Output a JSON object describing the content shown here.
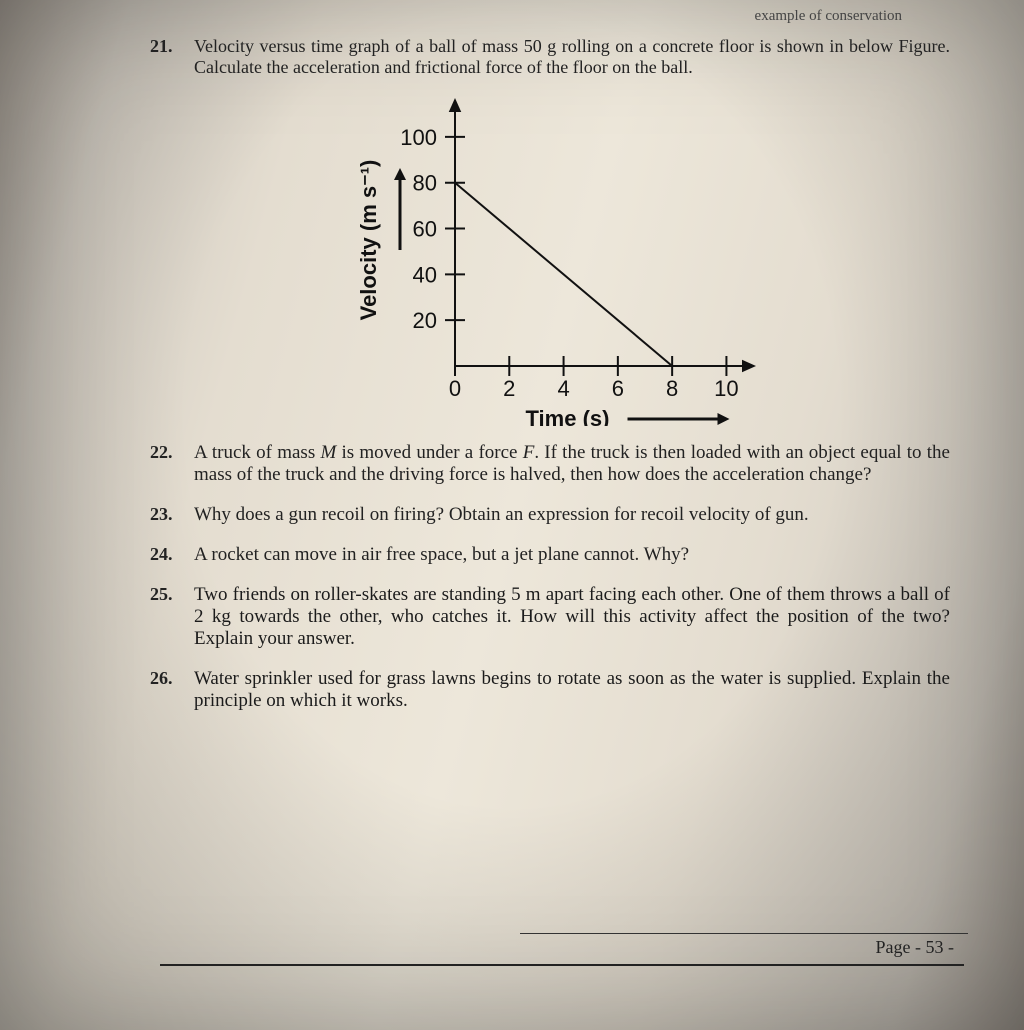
{
  "header_fragment": "example of conservation",
  "questions": {
    "q21": {
      "num": "21.",
      "text": "Velocity versus time graph of a ball of mass 50 g rolling on a concrete floor is shown in below Figure. Calculate the acceleration and frictional force of the floor on the ball."
    },
    "q22": {
      "num": "22.",
      "text_pre": "A truck of mass ",
      "M": "M",
      "text_mid": " is moved under a force ",
      "F": "F",
      "text_post": ". If the truck is then loaded with an object equal to the mass of the truck and the driving force is halved, then how does the acceleration change?"
    },
    "q23": {
      "num": "23.",
      "text": "Why does a gun recoil on firing? Obtain an expression for recoil velocity of gun."
    },
    "q24": {
      "num": "24.",
      "text": "A rocket can move in air free space, but a jet plane cannot. Why?"
    },
    "q25": {
      "num": "25.",
      "text": "Two friends on roller-skates are standing 5 m apart facing each other. One of them throws a ball of 2 kg towards the other, who catches it. How will this activity affect the position of the two? Explain your answer."
    },
    "q26": {
      "num": "26.",
      "text": "Water sprinkler used for grass lawns begins to rotate as soon as the water is supplied. Explain the principle on which it works."
    }
  },
  "chart": {
    "type": "line",
    "x_label": "Time (s)",
    "y_label": "Velocity (m s⁻¹)",
    "x_ticks": [
      0,
      2,
      4,
      6,
      8,
      10
    ],
    "y_ticks": [
      20,
      40,
      60,
      80,
      100
    ],
    "xlim": [
      0,
      10.5
    ],
    "ylim": [
      0,
      110
    ],
    "data_points": [
      [
        0,
        80
      ],
      [
        8,
        0
      ]
    ],
    "line_color": "#111111",
    "axis_color": "#111111",
    "tick_length": 10,
    "line_width": 2,
    "tick_fontsize": 22,
    "label_fontsize": 22,
    "arrow_size": 10
  },
  "page_footer": "Page - 53 -"
}
